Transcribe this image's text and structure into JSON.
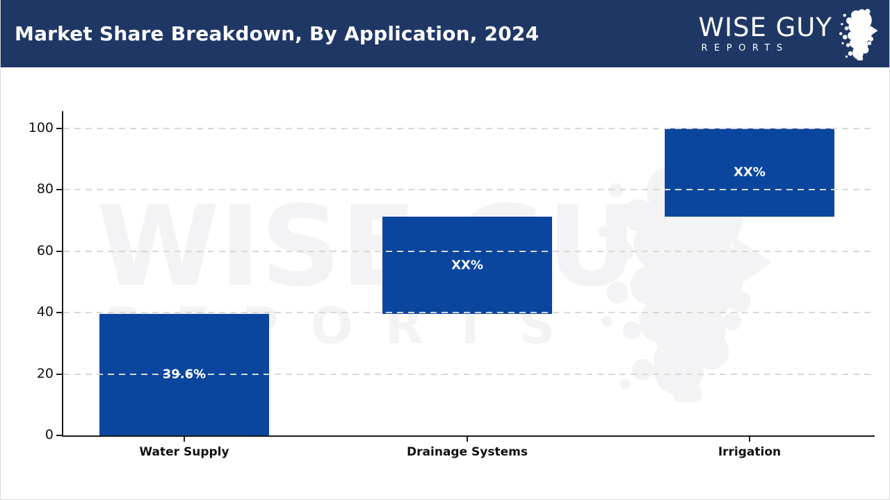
{
  "header": {
    "title": "Market Share Breakdown, By Application, 2024",
    "logo": {
      "line1": "WISE GUY",
      "line2": "REPORTS"
    },
    "bg_color": "#1e3765"
  },
  "watermark": {
    "line1": "WISE GUY",
    "line2": "REPORTS",
    "color": "#f3f3f5"
  },
  "chart_data": {
    "type": "bar",
    "subtype": "floating-waterfall",
    "title": "Market Share Breakdown, By Application, 2024",
    "categories": [
      "Water Supply",
      "Drainage Systems",
      "Irrigation"
    ],
    "segments": [
      {
        "category": "Water Supply",
        "start": 0,
        "end": 39.6,
        "label": "39.6%"
      },
      {
        "category": "Drainage Systems",
        "start": 39.6,
        "end": 71.3,
        "label": "XX%"
      },
      {
        "category": "Irrigation",
        "start": 71.3,
        "end": 100,
        "label": "XX%"
      }
    ],
    "xlabel": "",
    "ylabel": "",
    "ylim": [
      0,
      100
    ],
    "yticks": [
      0,
      20,
      40,
      60,
      80,
      100
    ],
    "grid": "horizontal-dashed",
    "bar_color": "#0a469e",
    "bar_label_color": "#ffffff",
    "grid_color": "#d8d8d8",
    "axis_color": "#1a1a1a"
  }
}
